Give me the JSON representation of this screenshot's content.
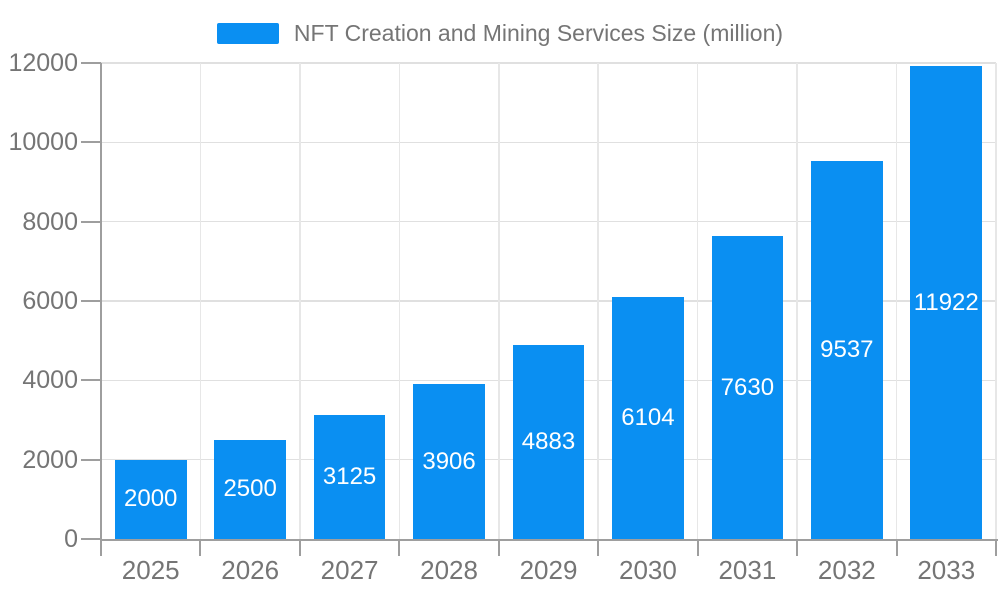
{
  "legend": {
    "label": "NFT Creation and Mining Services Size (million)"
  },
  "colors": {
    "bar": "#0a8ff2",
    "label_on_bar": "#ffffff",
    "axis_text": "#757575",
    "axis_line": "#9e9e9e",
    "gridline": "#e0e0e0",
    "gridline_vertical": "#e7e7e7",
    "background": "#ffffff"
  },
  "chart_data": {
    "type": "bar",
    "title": "NFT Creation and Mining Services Size (million)",
    "categories": [
      "2025",
      "2026",
      "2027",
      "2028",
      "2029",
      "2030",
      "2031",
      "2032",
      "2033"
    ],
    "values": [
      2000,
      2500,
      3125,
      3906,
      4883,
      6104,
      7630,
      9537,
      11922
    ],
    "series": [
      {
        "name": "NFT Creation and Mining Services Size (million)",
        "values": [
          2000,
          2500,
          3125,
          3906,
          4883,
          6104,
          7630,
          9537,
          11922
        ]
      }
    ],
    "xlabel": "",
    "ylabel": "",
    "ylim": [
      0,
      12000
    ],
    "yticks": [
      0,
      2000,
      4000,
      6000,
      8000,
      10000,
      12000
    ],
    "grid": true,
    "legend_position": "top-center",
    "bar_label_position": "inside-center"
  }
}
